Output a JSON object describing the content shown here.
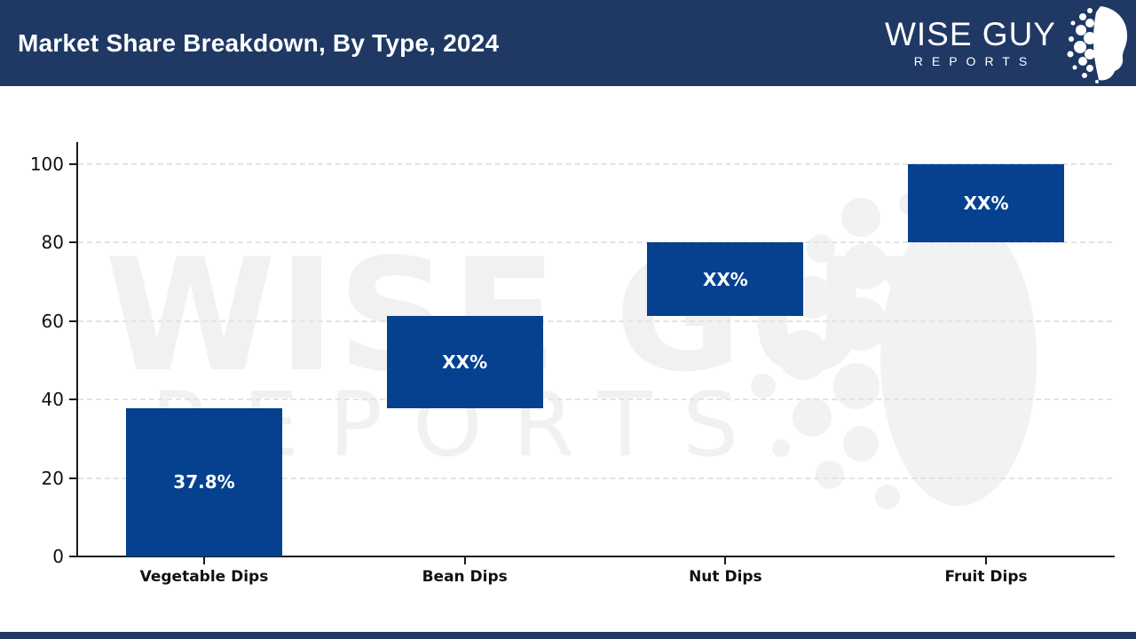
{
  "header": {
    "title": "Market Share Breakdown, By Type, 2024",
    "bg_color": "#1f3864",
    "logo": {
      "line1": "WISE GUY",
      "line2": "REPORTS"
    }
  },
  "watermark": {
    "line1": "WISE GUY",
    "line2": "REPORTS"
  },
  "chart_data": {
    "type": "bar",
    "subtype": "waterfall",
    "title": "Market Share Breakdown, By Type, 2024",
    "categories": [
      "Vegetable Dips",
      "Bean Dips",
      "Nut Dips",
      "Fruit Dips"
    ],
    "segments": [
      {
        "category": "Vegetable Dips",
        "start": 0,
        "end": 37.8,
        "label": "37.8%"
      },
      {
        "category": "Bean Dips",
        "start": 37.8,
        "end": 61.4,
        "label": "XX%"
      },
      {
        "category": "Nut Dips",
        "start": 61.4,
        "end": 80,
        "label": "XX%"
      },
      {
        "category": "Fruit Dips",
        "start": 80,
        "end": 100,
        "label": "XX%"
      }
    ],
    "xlabel": "",
    "ylabel": "",
    "ylim": [
      0,
      100
    ],
    "yticks": [
      0,
      20,
      40,
      60,
      80,
      100
    ],
    "grid": "horizontal-dashed",
    "legend": "none",
    "bar_color": "#05418f",
    "bar_label_color": "#ffffff",
    "axis_color": "#1a1a1a",
    "grid_color": "#e3e3e3"
  },
  "footer": {
    "bg_color": "#1f3864"
  }
}
